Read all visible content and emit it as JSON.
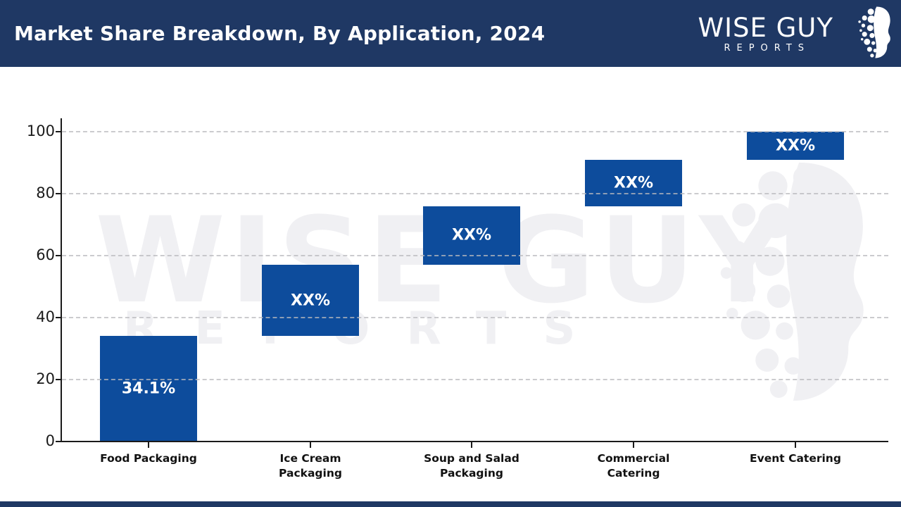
{
  "header": {
    "title": "Market Share Breakdown, By Application, 2024",
    "logo": {
      "brand": "WISE GUY",
      "sub": "REPORTS"
    }
  },
  "watermark": {
    "brand": "WISE GUY",
    "sub": "REPORTS"
  },
  "footer": {
    "visible": true
  },
  "colors": {
    "header_bg": "#1f3864",
    "footer_bg": "#1f3864",
    "bar": "#0d4c9c",
    "bar_label": "#ffffff",
    "axis": "#1a1a1a",
    "gridline": "#d9d9d9",
    "watermark": "#f0f0f3",
    "background": "#ffffff"
  },
  "chart_data": {
    "type": "bar",
    "subtype": "waterfall",
    "title": "Market Share Breakdown, By Application, 2024",
    "xlabel": "",
    "ylabel": "",
    "ylim": [
      0,
      100
    ],
    "yticks": [
      0,
      20,
      40,
      60,
      80,
      100
    ],
    "grid": "horizontal-dashed",
    "legend": "none",
    "categories": [
      "Food Packaging",
      "Ice Cream Packaging",
      "Soup and Salad Packaging",
      "Commercial Catering",
      "Event Catering"
    ],
    "category_label_lines": [
      [
        "Food Packaging"
      ],
      [
        "Ice Cream",
        "Packaging"
      ],
      [
        "Soup and Salad",
        "Packaging"
      ],
      [
        "Commercial",
        "Catering"
      ],
      [
        "Event Catering"
      ]
    ],
    "segments": [
      {
        "category": "Food Packaging",
        "start": 0,
        "end": 34.1,
        "value": 34.1,
        "label": "34.1%"
      },
      {
        "category": "Ice Cream Packaging",
        "start": 34.1,
        "end": 57.0,
        "value": 22.9,
        "label": "XX%"
      },
      {
        "category": "Soup and Salad Packaging",
        "start": 57.0,
        "end": 76.0,
        "value": 19.0,
        "label": "XX%"
      },
      {
        "category": "Commercial Catering",
        "start": 76.0,
        "end": 91.0,
        "value": 15.0,
        "label": "XX%"
      },
      {
        "category": "Event Catering",
        "start": 91.0,
        "end": 100.0,
        "value": 9.0,
        "label": "XX%"
      }
    ]
  }
}
